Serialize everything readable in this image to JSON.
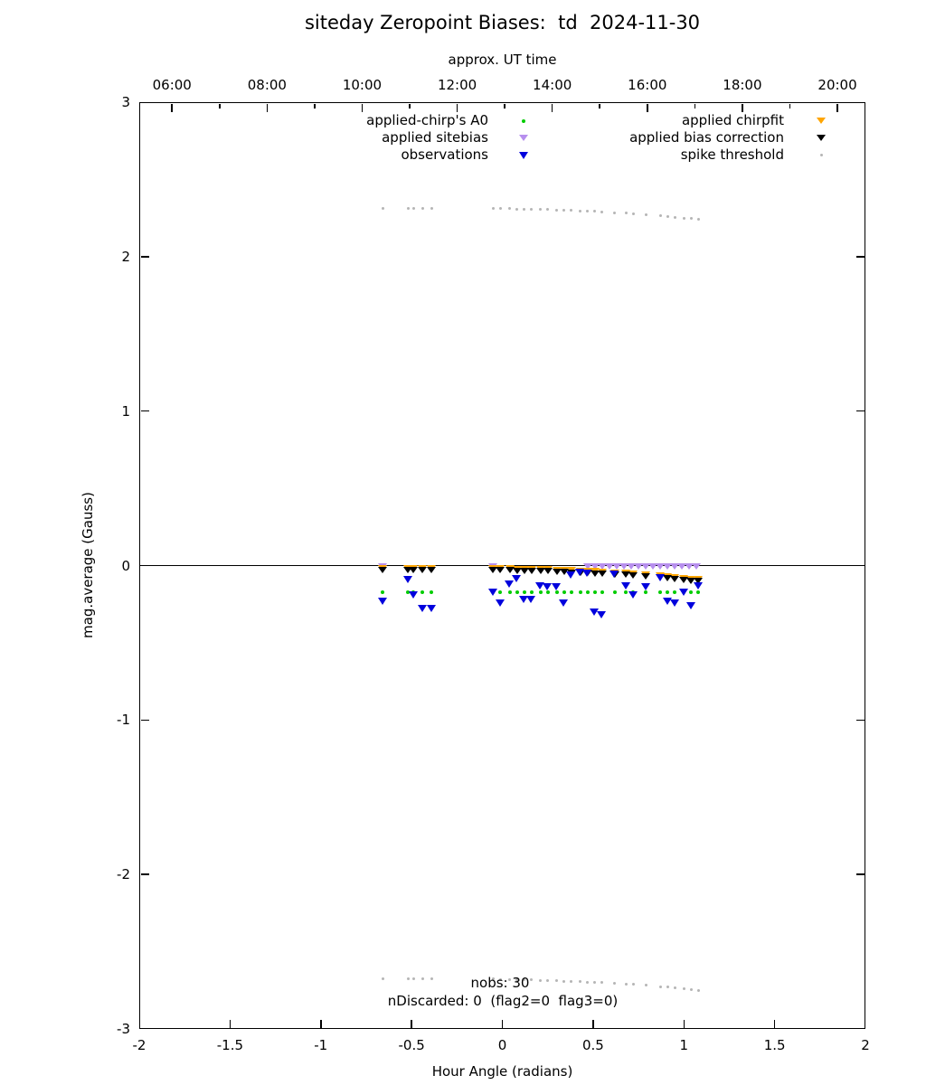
{
  "chart_data": {
    "type": "scatter",
    "title": "siteday Zeropoint Biases:  td  2024-11-30",
    "annotations": {
      "nobs": "nobs: 30",
      "ndiscarded": "nDiscarded: 0  (flag2=0  flag3=0)"
    },
    "axes": {
      "top": {
        "label": "approx. UT time",
        "meridian_hour": 12.95,
        "rad_per_hour": 0.2618,
        "ticks": [
          {
            "h": 6,
            "label": "06:00"
          },
          {
            "h": 7
          },
          {
            "h": 8,
            "label": "08:00"
          },
          {
            "h": 9
          },
          {
            "h": 10,
            "label": "10:00"
          },
          {
            "h": 11
          },
          {
            "h": 12,
            "label": "12:00"
          },
          {
            "h": 13
          },
          {
            "h": 14,
            "label": "14:00"
          },
          {
            "h": 15
          },
          {
            "h": 16,
            "label": "16:00"
          },
          {
            "h": 17
          },
          {
            "h": 18,
            "label": "18:00"
          },
          {
            "h": 19
          },
          {
            "h": 20,
            "label": "20:00"
          }
        ]
      },
      "bottom": {
        "label": "Hour Angle (radians)",
        "min": -2,
        "max": 2,
        "major_ticks": [
          -1.5,
          -1,
          -0.5,
          0,
          0.5,
          1,
          1.5
        ],
        "tick_labels": [
          {
            "v": -2,
            "t": "-2"
          },
          {
            "v": -1.5,
            "t": "-1.5"
          },
          {
            "v": -1,
            "t": "-1"
          },
          {
            "v": -0.5,
            "t": "-0.5"
          },
          {
            "v": 0,
            "t": "0"
          },
          {
            "v": 0.5,
            "t": "0.5"
          },
          {
            "v": 1,
            "t": "1"
          },
          {
            "v": 1.5,
            "t": "1.5"
          },
          {
            "v": 2,
            "t": "2"
          }
        ]
      },
      "left": {
        "label": "mag.average (Gauss)",
        "min": -3,
        "max": 3,
        "major_ticks": [
          -2,
          -1,
          0,
          1,
          2
        ],
        "tick_labels": [
          {
            "v": 3,
            "t": "3"
          },
          {
            "v": 2,
            "t": "2"
          },
          {
            "v": 1,
            "t": "1"
          },
          {
            "v": 0,
            "t": "0"
          },
          {
            "v": -1,
            "t": "-1"
          },
          {
            "v": -2,
            "t": "-2"
          },
          {
            "v": -3,
            "t": "-3"
          }
        ]
      }
    },
    "series": {
      "a0": {
        "label": "applied-chirp's A0",
        "color": "#00cc00",
        "marker": "dot",
        "points": [
          [
            -0.66,
            -0.172
          ],
          [
            -0.52,
            -0.172
          ],
          [
            -0.49,
            -0.172
          ],
          [
            -0.44,
            -0.172
          ],
          [
            -0.39,
            -0.172
          ],
          [
            -0.05,
            -0.172
          ],
          [
            -0.01,
            -0.172
          ],
          [
            0.04,
            -0.172
          ],
          [
            0.08,
            -0.172
          ],
          [
            0.12,
            -0.172
          ],
          [
            0.16,
            -0.172
          ],
          [
            0.21,
            -0.172
          ],
          [
            0.25,
            -0.172
          ],
          [
            0.3,
            -0.172
          ],
          [
            0.34,
            -0.172
          ],
          [
            0.38,
            -0.172
          ],
          [
            0.43,
            -0.172
          ],
          [
            0.47,
            -0.172
          ],
          [
            0.51,
            -0.172
          ],
          [
            0.55,
            -0.172
          ],
          [
            0.62,
            -0.172
          ],
          [
            0.68,
            -0.172
          ],
          [
            0.72,
            -0.172
          ],
          [
            0.79,
            -0.172
          ],
          [
            0.87,
            -0.172
          ],
          [
            0.91,
            -0.172
          ],
          [
            0.95,
            -0.172
          ],
          [
            1.0,
            -0.172
          ],
          [
            1.04,
            -0.172
          ],
          [
            1.08,
            -0.172
          ]
        ]
      },
      "sitebias": {
        "label": "applied sitebias",
        "color": "#b78fee",
        "marker": "triangle",
        "points": [
          [
            -0.66,
            -0.006
          ],
          [
            -0.05,
            -0.006
          ],
          [
            0.47,
            -0.006
          ],
          [
            0.51,
            -0.006
          ],
          [
            0.55,
            -0.006
          ],
          [
            0.59,
            -0.006
          ],
          [
            0.63,
            -0.006
          ],
          [
            0.67,
            -0.006
          ],
          [
            0.71,
            -0.006
          ],
          [
            0.75,
            -0.006
          ],
          [
            0.79,
            -0.006
          ],
          [
            0.83,
            -0.006
          ],
          [
            0.87,
            -0.006
          ],
          [
            0.91,
            -0.006
          ],
          [
            0.95,
            -0.006
          ],
          [
            0.99,
            -0.006
          ],
          [
            1.03,
            -0.006
          ],
          [
            1.07,
            -0.006
          ]
        ]
      },
      "observations": {
        "label": "observations",
        "color": "#0000dd",
        "marker": "triangle",
        "points": [
          [
            -0.66,
            -0.23
          ],
          [
            -0.52,
            -0.09
          ],
          [
            -0.49,
            -0.19
          ],
          [
            -0.44,
            -0.28
          ],
          [
            -0.39,
            -0.28
          ],
          [
            -0.05,
            -0.17
          ],
          [
            -0.01,
            -0.245
          ],
          [
            0.04,
            -0.12
          ],
          [
            0.08,
            -0.085
          ],
          [
            0.12,
            -0.22
          ],
          [
            0.16,
            -0.22
          ],
          [
            0.21,
            -0.13
          ],
          [
            0.25,
            -0.135
          ],
          [
            0.3,
            -0.135
          ],
          [
            0.34,
            -0.245
          ],
          [
            0.38,
            -0.06
          ],
          [
            0.43,
            -0.046
          ],
          [
            0.47,
            -0.048
          ],
          [
            0.51,
            -0.3
          ],
          [
            0.55,
            -0.32
          ],
          [
            0.62,
            -0.057
          ],
          [
            0.68,
            -0.13
          ],
          [
            0.72,
            -0.19
          ],
          [
            0.79,
            -0.14
          ],
          [
            0.87,
            -0.077
          ],
          [
            0.91,
            -0.23
          ],
          [
            0.95,
            -0.24
          ],
          [
            1.0,
            -0.17
          ],
          [
            1.04,
            -0.26
          ],
          [
            1.08,
            -0.13
          ]
        ]
      },
      "chirpfit": {
        "label": "applied chirpfit",
        "color": "#ffa500",
        "marker": "triangle",
        "points": [
          [
            -0.66,
            -0.018
          ],
          [
            -0.52,
            -0.016
          ],
          [
            -0.49,
            -0.016
          ],
          [
            -0.44,
            -0.016
          ],
          [
            -0.39,
            -0.016
          ],
          [
            -0.05,
            -0.018
          ],
          [
            -0.01,
            -0.019
          ],
          [
            0.04,
            -0.02
          ],
          [
            0.08,
            -0.021
          ],
          [
            0.12,
            -0.022
          ],
          [
            0.16,
            -0.023
          ],
          [
            0.21,
            -0.025
          ],
          [
            0.25,
            -0.026
          ],
          [
            0.3,
            -0.028
          ],
          [
            0.34,
            -0.03
          ],
          [
            0.38,
            -0.032
          ],
          [
            0.43,
            -0.034
          ],
          [
            0.47,
            -0.036
          ],
          [
            0.51,
            -0.038
          ],
          [
            0.55,
            -0.041
          ],
          [
            0.62,
            -0.045
          ],
          [
            0.68,
            -0.049
          ],
          [
            0.72,
            -0.052
          ],
          [
            0.79,
            -0.058
          ],
          [
            0.87,
            -0.065
          ],
          [
            0.91,
            -0.07
          ],
          [
            0.95,
            -0.074
          ],
          [
            1.0,
            -0.08
          ],
          [
            1.04,
            -0.085
          ],
          [
            1.08,
            -0.09
          ]
        ]
      },
      "bias_correction": {
        "label": "applied bias correction",
        "color": "#000000",
        "marker": "triangle",
        "points": [
          [
            -0.66,
            -0.03
          ],
          [
            -0.52,
            -0.028
          ],
          [
            -0.49,
            -0.028
          ],
          [
            -0.44,
            -0.028
          ],
          [
            -0.39,
            -0.028
          ],
          [
            -0.05,
            -0.03
          ],
          [
            -0.01,
            -0.031
          ],
          [
            0.04,
            -0.032
          ],
          [
            0.08,
            -0.033
          ],
          [
            0.12,
            -0.034
          ],
          [
            0.16,
            -0.035
          ],
          [
            0.21,
            -0.037
          ],
          [
            0.25,
            -0.038
          ],
          [
            0.3,
            -0.04
          ],
          [
            0.34,
            -0.042
          ],
          [
            0.38,
            -0.044
          ],
          [
            0.43,
            -0.046
          ],
          [
            0.47,
            -0.048
          ],
          [
            0.51,
            -0.05
          ],
          [
            0.55,
            -0.053
          ],
          [
            0.62,
            -0.057
          ],
          [
            0.68,
            -0.061
          ],
          [
            0.72,
            -0.064
          ],
          [
            0.79,
            -0.07
          ],
          [
            0.87,
            -0.077
          ],
          [
            0.91,
            -0.082
          ],
          [
            0.95,
            -0.086
          ],
          [
            1.0,
            -0.092
          ],
          [
            1.04,
            -0.097
          ],
          [
            1.08,
            -0.102
          ]
        ]
      },
      "spike_threshold": {
        "label": "spike threshold",
        "color": "#b5b5b5",
        "marker": "dot",
        "top_offset": 2.33,
        "bottom_offset": -2.66
      }
    },
    "legend": {
      "left": [
        "a0",
        "sitebias",
        "observations"
      ],
      "right": [
        "chirpfit",
        "bias_correction",
        "spike_threshold"
      ]
    }
  }
}
